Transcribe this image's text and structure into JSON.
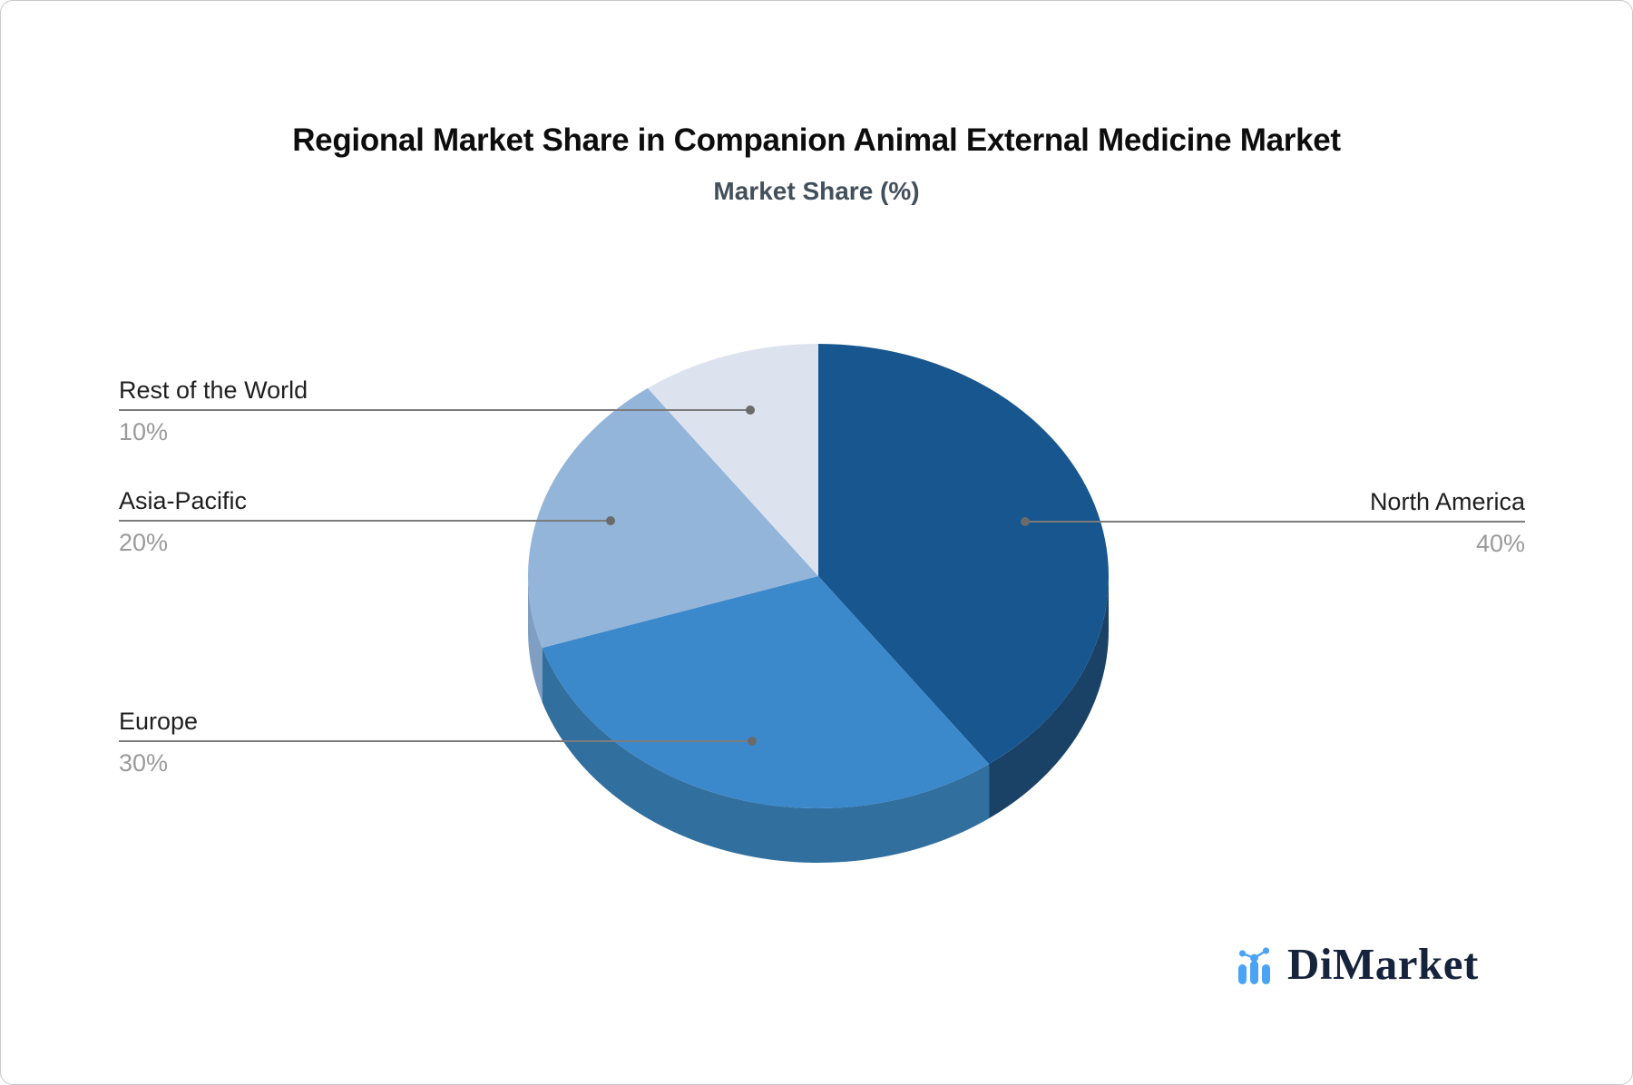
{
  "chart_data": {
    "type": "pie",
    "title": "Regional Market Share in Companion Animal External Medicine Market",
    "subtitle": "Market Share (%)",
    "unit": "%",
    "effect": "3d",
    "start_angle_deg": 0,
    "clockwise": true,
    "legend_position": "callout-labels",
    "slices": [
      {
        "label": "North America",
        "value": 40,
        "pct_label": "40%",
        "color": "#17568E",
        "side_color": "#1A4166"
      },
      {
        "label": "Europe",
        "value": 30,
        "pct_label": "30%",
        "color": "#3B88CB",
        "side_color": "#316F9F"
      },
      {
        "label": "Asia-Pacific",
        "value": 20,
        "pct_label": "20%",
        "color": "#93B5D9",
        "side_color": "#7F9EC2"
      },
      {
        "label": "Rest of the World",
        "value": 10,
        "pct_label": "10%",
        "color": "#DCE3EF",
        "side_color": "#C3CDDE"
      }
    ],
    "callout_line_color": "#7c7c7c",
    "callout_dot_color": "#6b6b6b"
  },
  "branding": {
    "logo_text": "DiMarket",
    "logo_icon": "bar-line-chart-icon",
    "logo_text_color": "#16233c",
    "logo_icon_color": "#4AA3F5"
  }
}
